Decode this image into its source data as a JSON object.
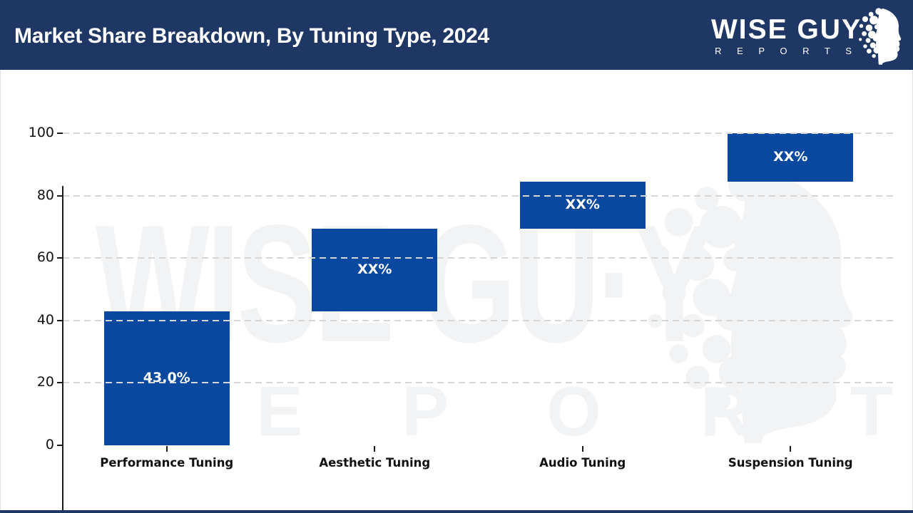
{
  "header": {
    "title": "Market Share Breakdown, By Tuning Type, 2024",
    "brand": {
      "line1": "WISE GUY",
      "line2": "R E P O R T S"
    },
    "bg_color": "#1f3765",
    "text_color": "#ffffff"
  },
  "watermark": {
    "line1": "WISE GU·Y",
    "line2": "R E P O R T S"
  },
  "chart_data": {
    "type": "bar",
    "subtype": "waterfall",
    "title": "Market Share Breakdown, By Tuning Type, 2024",
    "categories": [
      "Performance Tuning",
      "Aesthetic Tuning",
      "Audio Tuning",
      "Suspension Tuning"
    ],
    "segments": [
      {
        "category": "Performance Tuning",
        "start": 0,
        "end": 43,
        "value": 43.0,
        "label": "43.0%"
      },
      {
        "category": "Aesthetic Tuning",
        "start": 43,
        "end": 69.5,
        "value": 26.5,
        "label": "XX%"
      },
      {
        "category": "Audio Tuning",
        "start": 69.5,
        "end": 84.5,
        "value": 15.0,
        "label": "XX%"
      },
      {
        "category": "Suspension Tuning",
        "start": 84.5,
        "end": 100,
        "value": 15.5,
        "label": "XX%"
      }
    ],
    "xlabel": "",
    "ylabel": "",
    "ylim": [
      0,
      100
    ],
    "yticks": [
      0,
      20,
      40,
      60,
      80,
      100
    ],
    "grid": "dashed-horizontal",
    "legend": "none",
    "bar_color": "#08489e",
    "bar_label_color": "#ffffff",
    "axis_color": "#1a1a1a"
  },
  "footer": {
    "bg_color": "#1f3765"
  }
}
